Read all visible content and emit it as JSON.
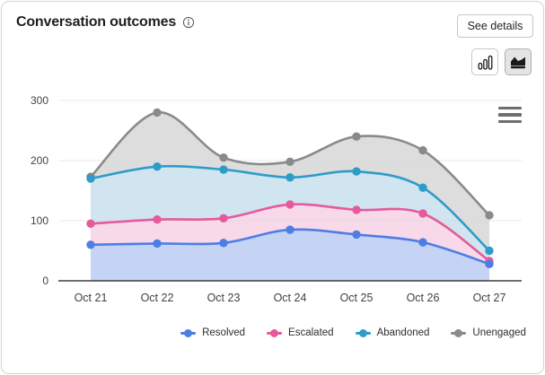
{
  "header": {
    "title": "Conversation outcomes",
    "see_details_label": "See details"
  },
  "icons": {
    "info": "info-icon",
    "bar_view": "bar-chart-icon",
    "area_view": "area-chart-icon",
    "menu": "hamburger-menu-icon"
  },
  "colors": {
    "axis_label": "#424242",
    "axis_line": "#3d3d3d",
    "gridline": "#dadada",
    "card_border": "#d5d5d5"
  },
  "chart_data": {
    "type": "area",
    "x_labels": [
      "Oct 21",
      "Oct 22",
      "Oct 23",
      "Oct 24",
      "Oct 25",
      "Oct 26",
      "Oct 27"
    ],
    "series": [
      {
        "name": "Resolved",
        "color": "#4e7de5",
        "fill": "#c5d4f5",
        "values": [
          60,
          62,
          63,
          85,
          77,
          64,
          28
        ]
      },
      {
        "name": "Escalated",
        "color": "#e55a9c",
        "fill": "#f8d9e9",
        "values": [
          95,
          102,
          104,
          127,
          118,
          112,
          33
        ]
      },
      {
        "name": "Abandoned",
        "color": "#2f9cc8",
        "fill": "#d0e5f0",
        "values": [
          170,
          190,
          185,
          172,
          182,
          155,
          50
        ]
      },
      {
        "name": "Unengaged",
        "color": "#8a8a8a",
        "fill": "#dddddd",
        "values": [
          173,
          280,
          205,
          198,
          240,
          217,
          109
        ]
      }
    ],
    "ylim": [
      0,
      300
    ],
    "yticks": [
      0,
      100,
      200,
      300
    ],
    "grid": true,
    "legend_position": "bottom",
    "smooth": true
  }
}
